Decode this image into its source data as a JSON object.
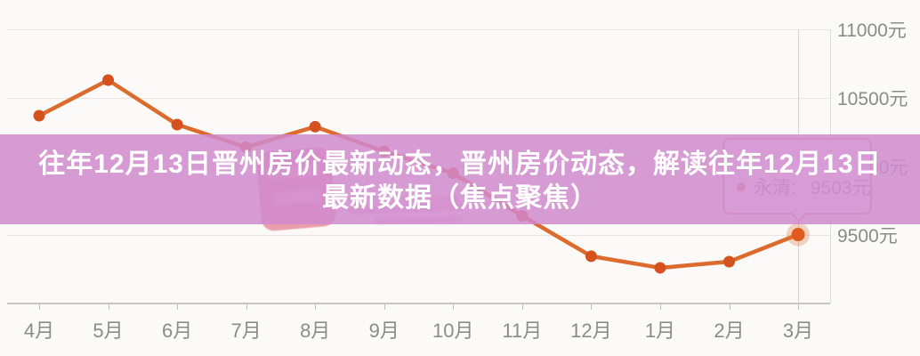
{
  "banner": {
    "title_line1": "往年12月13日晋州房价最新动态，晋州房价动态，解读往年12月13日",
    "title_line2": "最新数据（焦点聚焦）",
    "background_color": "#d08ace",
    "text_color": "#ffffff"
  },
  "tooltip": {
    "series_name": "永清:",
    "value": "9503元",
    "dot_color": "#e18a74",
    "border_color": "#e79d97"
  },
  "chart_data": {
    "type": "line",
    "categories": [
      "4月",
      "5月",
      "6月",
      "7月",
      "8月",
      "9月",
      "10月",
      "11月",
      "12月",
      "1月",
      "2月",
      "3月"
    ],
    "values": [
      10370,
      10630,
      10305,
      10140,
      10290,
      10110,
      9950,
      9640,
      9345,
      9260,
      9305,
      9503
    ],
    "unit": "元",
    "title": "",
    "xlabel": "",
    "ylabel": "",
    "ylim": [
      9000,
      11000
    ],
    "y_ticks": [
      {
        "value": 11000,
        "label": "11000元"
      },
      {
        "value": 10500,
        "label": "10500元"
      },
      {
        "value": 10000,
        "label": "10000元"
      },
      {
        "value": 9500,
        "label": "9500元"
      }
    ],
    "grid": true,
    "legend_position": "none",
    "highlight_index": 11,
    "highlighted_point": {
      "category": "3月",
      "series": "永清",
      "value": 9503
    },
    "line_color": "#dc6b2d",
    "point_color": "#d5521e",
    "highlight_point_color": "#e05a1d",
    "highlight_halo_color": "rgba(228,124,66,0.32)",
    "axis_label_color": "#8b8b8b"
  }
}
